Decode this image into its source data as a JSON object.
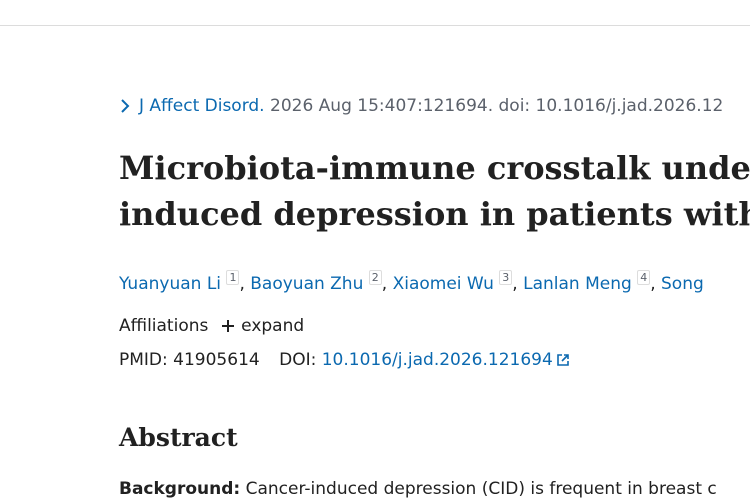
{
  "citation": {
    "journal": "J Affect Disord.",
    "details": "2026 Aug 15:407:121694. doi: 10.1016/j.jad.2026.12"
  },
  "title": {
    "lines": [
      "Microbiota-immune crosstalk under",
      "induced depression in patients with"
    ]
  },
  "authors": {
    "separator": ",",
    "list": [
      {
        "name": "Yuanyuan Li",
        "sup": "1"
      },
      {
        "name": "Baoyuan Zhu",
        "sup": "2"
      },
      {
        "name": "Xiaomei Wu",
        "sup": "3"
      },
      {
        "name": "Lanlan Meng",
        "sup": "4"
      },
      {
        "name": "Song",
        "sup": null
      }
    ]
  },
  "affiliations": {
    "label": "Affiliations",
    "toggle": "expand"
  },
  "ids": {
    "pmid_label": "PMID:",
    "pmid": "41905614",
    "doi_label": "DOI:",
    "doi": "10.1016/j.jad.2026.121694"
  },
  "abstract": {
    "heading": "Abstract",
    "background_label": "Background:",
    "background_text": "Cancer-induced depression (CID) is frequent in breast c"
  }
}
